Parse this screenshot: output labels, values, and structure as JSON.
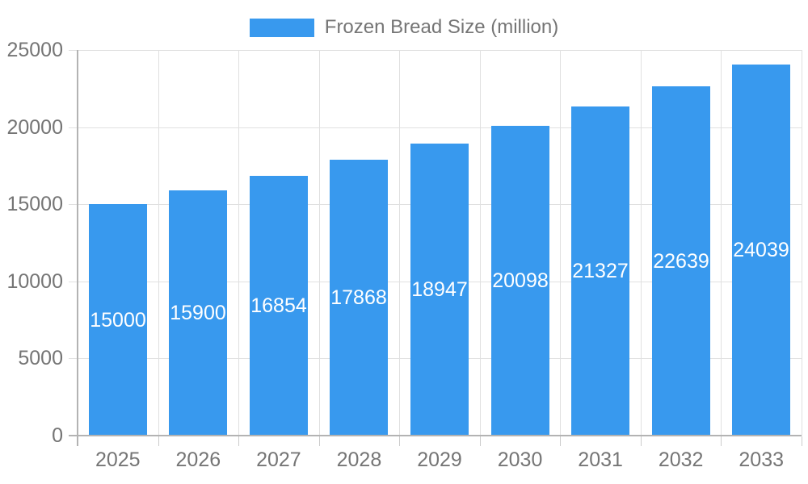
{
  "chart_data": {
    "type": "bar",
    "title": "Frozen Bread Size (million)",
    "legend": {
      "label": "Frozen Bread Size (million)",
      "position": "top"
    },
    "categories": [
      "2025",
      "2026",
      "2027",
      "2028",
      "2029",
      "2030",
      "2031",
      "2032",
      "2033"
    ],
    "values": [
      15000,
      15900,
      16854,
      17868,
      18947,
      20098,
      21327,
      22639,
      24039
    ],
    "value_labels": [
      "15000",
      "15900",
      "16854",
      "17868",
      "18947",
      "20098",
      "21327",
      "22639",
      "24039"
    ],
    "xlabel": "",
    "ylabel": "",
    "ylim": [
      0,
      25000
    ],
    "yticks": [
      0,
      5000,
      10000,
      15000,
      20000,
      25000
    ],
    "ytick_labels": [
      "0",
      "5000",
      "10000",
      "15000",
      "20000",
      "25000"
    ],
    "grid": true,
    "legend_position": "top",
    "colors": {
      "bar": "#3899ee",
      "value_label": "#ffffff",
      "axis_label": "#757575",
      "legend_text": "#757575",
      "gridline": "#e0e0e0",
      "axis_line": "#b3b3b3",
      "tick": "#cccccc",
      "background": "#ffffff"
    }
  }
}
